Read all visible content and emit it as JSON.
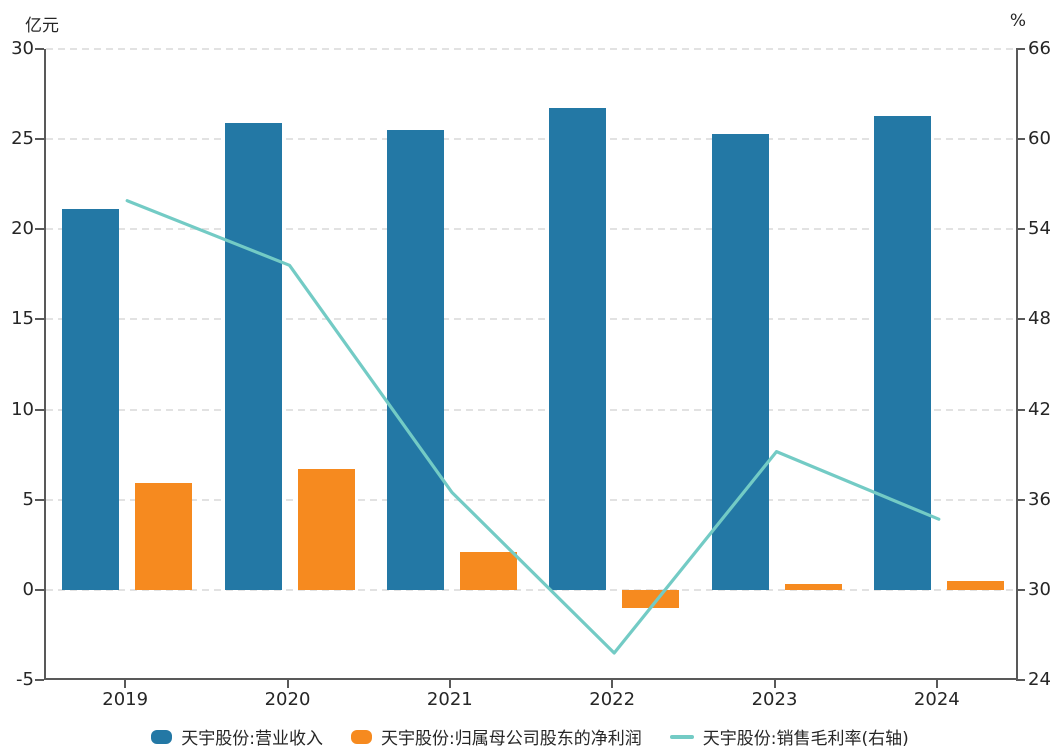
{
  "chart_data": {
    "type": "bar+line combo",
    "categories": [
      "2019",
      "2020",
      "2021",
      "2022",
      "2023",
      "2024"
    ],
    "series": [
      {
        "key": "revenue",
        "name": "天宇股份:营业收入",
        "type": "bar",
        "axis": "left",
        "color": "#2378A5",
        "values": [
          21.1,
          25.9,
          25.5,
          26.7,
          25.3,
          26.3
        ]
      },
      {
        "key": "net-profit",
        "name": "天宇股份:归属母公司股东的净利润",
        "type": "bar",
        "axis": "left",
        "color": "#F68A1F",
        "values": [
          5.9,
          6.7,
          2.1,
          -1.0,
          0.3,
          0.5
        ]
      },
      {
        "key": "gross-margin",
        "name": "天宇股份:销售毛利率(右轴)",
        "type": "line",
        "axis": "right",
        "color": "#73CBC5",
        "values": [
          55.9,
          51.6,
          36.5,
          25.8,
          39.2,
          34.7
        ]
      }
    ],
    "left_axis": {
      "unit": "亿元",
      "min": -5,
      "max": 30,
      "ticks": [
        30,
        25,
        20,
        15,
        10,
        5,
        0,
        -5
      ]
    },
    "right_axis": {
      "unit": "%",
      "min": 24,
      "max": 66,
      "ticks": [
        66,
        60,
        54,
        48,
        42,
        36,
        30,
        24
      ]
    },
    "grid": "horizontal dashed",
    "legend_position": "bottom-center",
    "colors": {
      "axis": "#595959",
      "gridline": "#E2E2E2",
      "text": "#262626",
      "background": "#FFFFFF"
    }
  }
}
